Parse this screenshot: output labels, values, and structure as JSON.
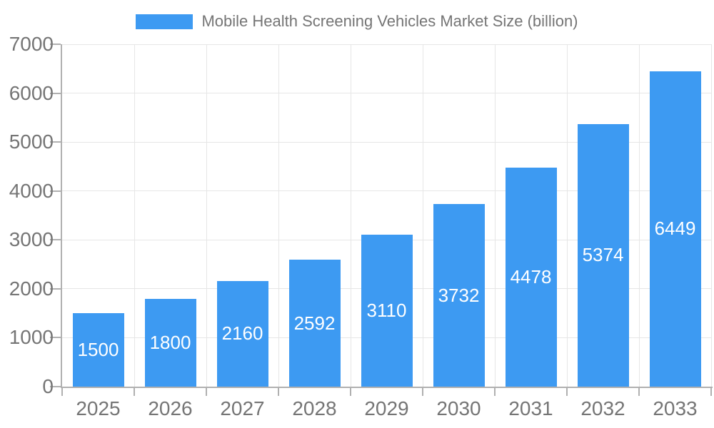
{
  "chart_data": {
    "type": "bar",
    "title": "Mobile Health Screening Vehicles Market Size (billion)",
    "legend_position": "top",
    "categories": [
      "2025",
      "2026",
      "2027",
      "2028",
      "2029",
      "2030",
      "2031",
      "2032",
      "2033"
    ],
    "values": [
      1500,
      1800,
      2160,
      2592,
      3110,
      3732,
      4478,
      5374,
      6449
    ],
    "xlabel": "",
    "ylabel": "",
    "ylim": [
      0,
      7000
    ],
    "yticks": [
      0,
      1000,
      2000,
      3000,
      4000,
      5000,
      6000,
      7000
    ],
    "grid": "horizontal and vertical light gridlines",
    "value_labels": "white, centered inside bars",
    "colors": {
      "bar": "#3d9af2",
      "gridline": "#e6e6e6",
      "axis": "#b0b0b0",
      "text": "#757575",
      "value_label": "#ffffff",
      "background": "#ffffff"
    }
  }
}
